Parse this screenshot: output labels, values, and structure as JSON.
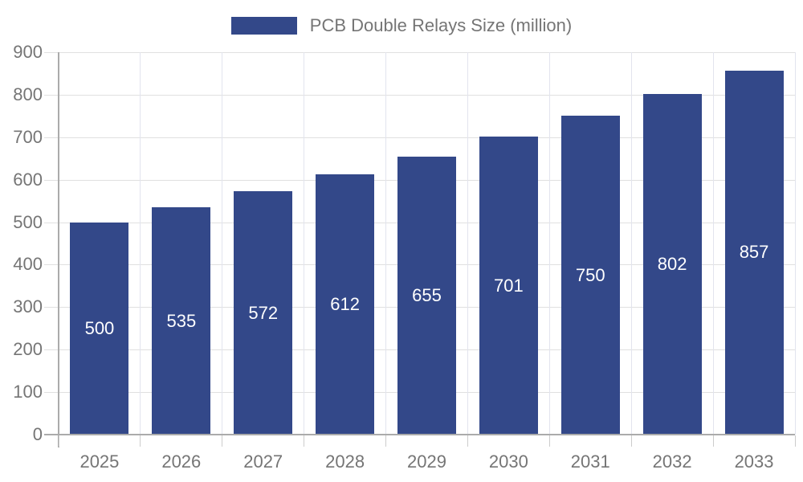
{
  "legend": {
    "label": "PCB Double Relays Size (million)"
  },
  "chart_data": {
    "type": "bar",
    "title": "PCB Double Relays Size (million)",
    "series_name": "PCB Double Relays Size (million)",
    "categories": [
      "2025",
      "2026",
      "2027",
      "2028",
      "2029",
      "2030",
      "2031",
      "2032",
      "2033"
    ],
    "values": [
      500,
      535,
      572,
      612,
      655,
      701,
      750,
      802,
      857
    ],
    "xlabel": "",
    "ylabel": "",
    "ylim": [
      0,
      900
    ],
    "ytick_step": 100,
    "yticks": [
      0,
      100,
      200,
      300,
      400,
      500,
      600,
      700,
      800,
      900
    ],
    "grid": true,
    "legend_position": "top-center",
    "colors": {
      "bar": "#334889",
      "value_label": "#ffffff",
      "axis_text": "#757575",
      "axis_line": "#ababab",
      "gridline_h": "#e0e0e0",
      "gridline_v": "#e2e4ee"
    }
  }
}
